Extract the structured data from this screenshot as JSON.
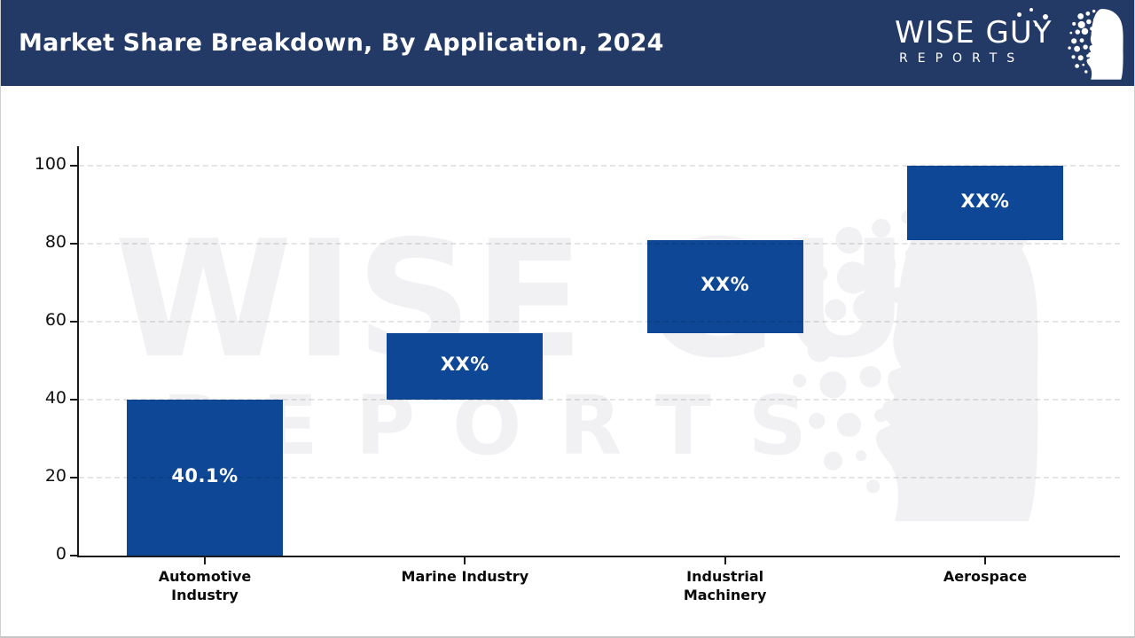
{
  "header": {
    "title": "Market Share Breakdown, By Application, 2024",
    "logo": {
      "name": "WISE GUY",
      "subtitle": "REPORTS"
    }
  },
  "watermark": {
    "name": "WISE GUY",
    "subtitle": "REPORTS"
  },
  "colors": {
    "header_bg": "#233a66",
    "bar": "#0d4796",
    "title_text": "#ffffff",
    "bar_label_text": "#ffffff",
    "axis_text": "#111111",
    "watermark": "#f1f1f4"
  },
  "chart_data": {
    "type": "bar",
    "variant": "waterfall",
    "title": "Market Share Breakdown, By Application, 2024",
    "categories": [
      "Automotive Industry",
      "Marine Industry",
      "Industrial Machinery",
      "Aerospace"
    ],
    "category_display_lines": [
      [
        "Automotive",
        "Industry"
      ],
      [
        "Marine Industry"
      ],
      [
        "Industrial",
        "Machinery"
      ],
      [
        "Aerospace"
      ]
    ],
    "segments": [
      {
        "category": "Automotive Industry",
        "start": 0,
        "end": 40.1,
        "label": "40.1%"
      },
      {
        "category": "Marine Industry",
        "start": 40.1,
        "end": 57,
        "label": "XX%"
      },
      {
        "category": "Industrial Machinery",
        "start": 57,
        "end": 81,
        "label": "XX%"
      },
      {
        "category": "Aerospace",
        "start": 81,
        "end": 100,
        "label": "XX%"
      }
    ],
    "xlabel": "",
    "ylabel": "",
    "ylim": [
      0,
      100
    ],
    "y_ticks": [
      0,
      20,
      40,
      60,
      80,
      100
    ],
    "grid": "horizontal-dashed",
    "legend": "none"
  }
}
